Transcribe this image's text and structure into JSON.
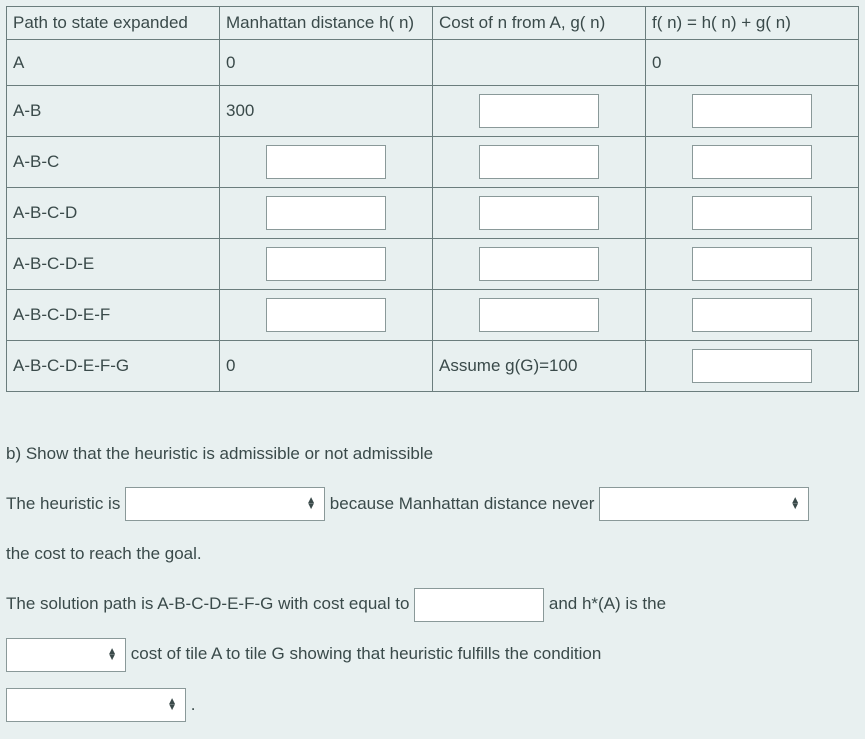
{
  "table": {
    "headers": [
      "Path to state expanded",
      "Manhattan distance h( n)",
      "Cost of n from A, g( n)",
      "f( n) = h( n) + g( n)"
    ],
    "rows": [
      {
        "path": "A",
        "h": "0",
        "g": "",
        "f": "0",
        "h_input": false,
        "g_input": false,
        "f_input": false
      },
      {
        "path": "A-B",
        "h": "300",
        "g": "",
        "f": "",
        "h_input": false,
        "g_input": true,
        "f_input": true
      },
      {
        "path": "A-B-C",
        "h": "",
        "g": "",
        "f": "",
        "h_input": true,
        "g_input": true,
        "f_input": true
      },
      {
        "path": "A-B-C-D",
        "h": "",
        "g": "",
        "f": "",
        "h_input": true,
        "g_input": true,
        "f_input": true
      },
      {
        "path": "A-B-C-D-E",
        "h": "",
        "g": "",
        "f": "",
        "h_input": true,
        "g_input": true,
        "f_input": true
      },
      {
        "path": "A-B-C-D-E-F",
        "h": "",
        "g": "",
        "f": "",
        "h_input": true,
        "g_input": true,
        "f_input": true
      },
      {
        "path": "A-B-C-D-E-F-G",
        "h": "0",
        "g": "Assume g(G)=100",
        "f": "",
        "h_input": false,
        "g_input": false,
        "f_input": true
      }
    ]
  },
  "partb": {
    "title": "b) Show that the heuristic is admissible or not admissible",
    "text1a": "The heuristic is ",
    "text1b": " because Manhattan distance never ",
    "text2": "the cost to reach the goal.",
    "text3a": "The solution path is A-B-C-D-E-F-G with cost equal to ",
    "text3b": " and h*(A) is the",
    "text4": " cost of tile A to tile G showing that heuristic fulfills the condition",
    "text5": "."
  }
}
